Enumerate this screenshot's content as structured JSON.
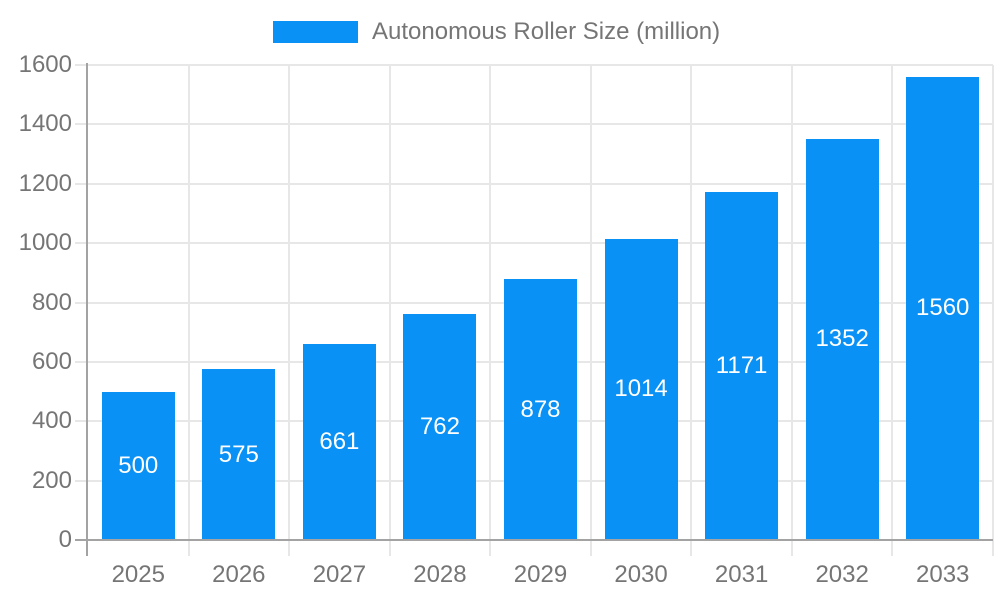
{
  "chart_data": {
    "type": "bar",
    "title": "Autonomous Roller Size (million)",
    "legend": {
      "label": "Autonomous Roller Size (million)",
      "position": "top-center",
      "swatch_shape": "rect"
    },
    "categories": [
      "2025",
      "2026",
      "2027",
      "2028",
      "2029",
      "2030",
      "2031",
      "2032",
      "2033"
    ],
    "values": [
      500,
      575,
      661,
      762,
      878,
      1014,
      1171,
      1352,
      1560
    ],
    "xlabel": "",
    "ylabel": "",
    "ylim": [
      0,
      1600
    ],
    "yticks": [
      0,
      200,
      400,
      600,
      800,
      1000,
      1200,
      1400,
      1600
    ],
    "grid": true,
    "value_label_position": "inside-center",
    "colors": {
      "bar": "#0a91f5",
      "grid": "#e7e7e7",
      "axis": "#a3a3a3",
      "tick_text": "#757575",
      "legend_text": "#757575",
      "value_label": "#ffffff",
      "background": "#ffffff"
    }
  }
}
